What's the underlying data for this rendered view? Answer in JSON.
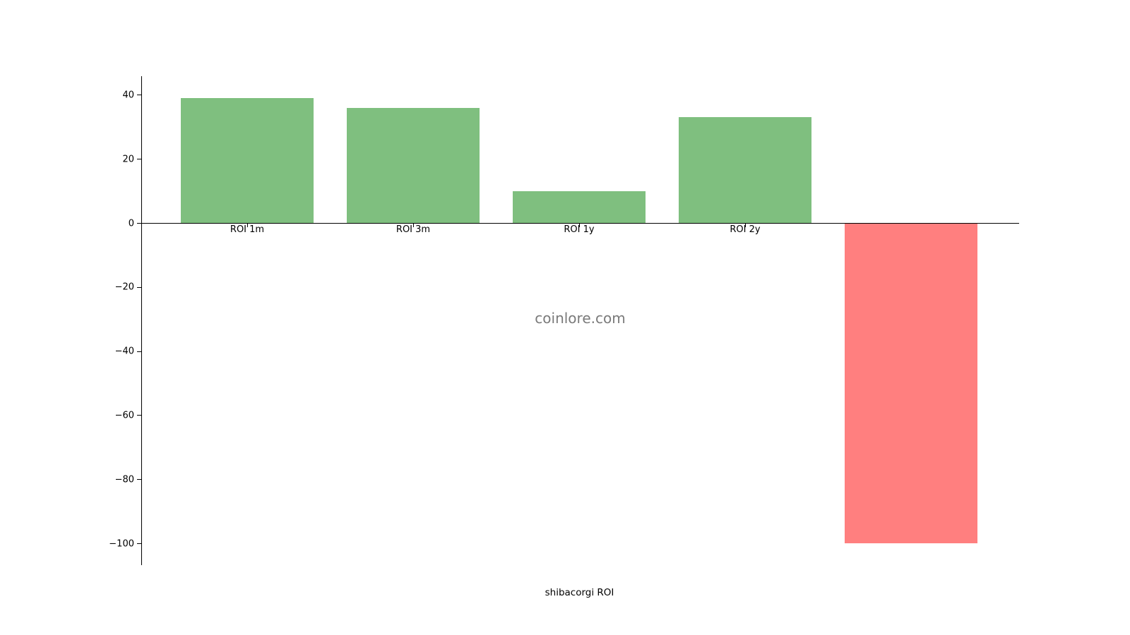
{
  "chart_data": {
    "type": "bar",
    "title": "shibacorgi ROI",
    "watermark": "coinlore.com",
    "categories": [
      "ROI 1m",
      "ROI 3m",
      "ROI 1y",
      "ROI 2y",
      ""
    ],
    "values": [
      39,
      36,
      10,
      33,
      -100
    ],
    "bar_colors": [
      "#7fbf7f",
      "#7fbf7f",
      "#7fbf7f",
      "#7fbf7f",
      "#ff7f7f"
    ],
    "positive_color": "#7fbf7f",
    "negative_color": "#ff7f7f",
    "yticks": [
      40,
      20,
      0,
      -20,
      -40,
      -60,
      -80,
      -100
    ],
    "ylim": [
      -107,
      46
    ],
    "xlabel": "",
    "ylabel": "",
    "grid": false,
    "legend_position": "none",
    "axis_color": "#000000",
    "tick_text_color": "#000000",
    "watermark_color": "#7a7a7a"
  }
}
